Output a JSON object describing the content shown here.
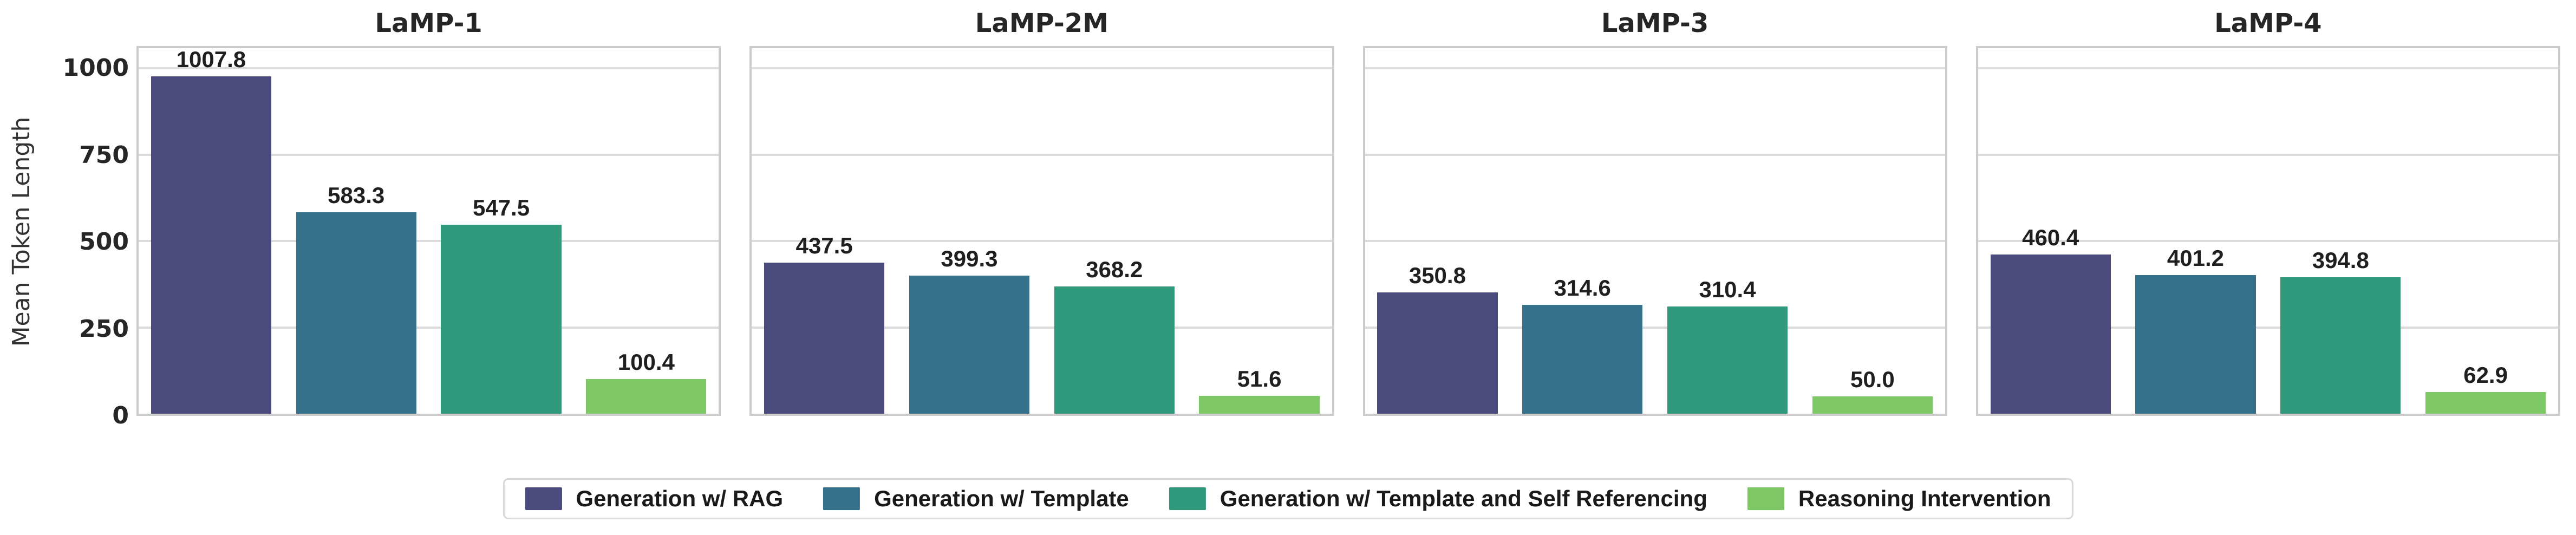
{
  "figure": {
    "ylabel": "Mean Token Length"
  },
  "chart_data": {
    "type": "bar",
    "title": "",
    "xlabel": "",
    "ylabel": "Mean Token Length",
    "yticks": [
      0,
      250,
      500,
      750,
      1000
    ],
    "ylim": [
      0,
      1058
    ],
    "grid": true,
    "legend_position": "bottom-center",
    "value_labels": true,
    "panels": [
      {
        "title": "LaMP-1",
        "values": [
          1007.8,
          583.3,
          547.5,
          100.4
        ]
      },
      {
        "title": "LaMP-2M",
        "values": [
          437.5,
          399.3,
          368.2,
          51.6
        ]
      },
      {
        "title": "LaMP-3",
        "values": [
          350.8,
          314.6,
          310.4,
          50.0
        ]
      },
      {
        "title": "LaMP-4",
        "values": [
          460.4,
          401.2,
          394.8,
          62.9
        ]
      }
    ],
    "series": [
      {
        "name": "Generation w/ RAG",
        "color": "#4a4a7d"
      },
      {
        "name": "Generation w/ Template",
        "color": "#35718a"
      },
      {
        "name": "Generation w/ Template and Self Referencing",
        "color": "#30997c"
      },
      {
        "name": "Reasoning Intervention",
        "color": "#7dc765"
      }
    ],
    "style_colors": {
      "grid": "#dcdcdc",
      "spine": "#cccccc",
      "text": "#262626"
    }
  }
}
